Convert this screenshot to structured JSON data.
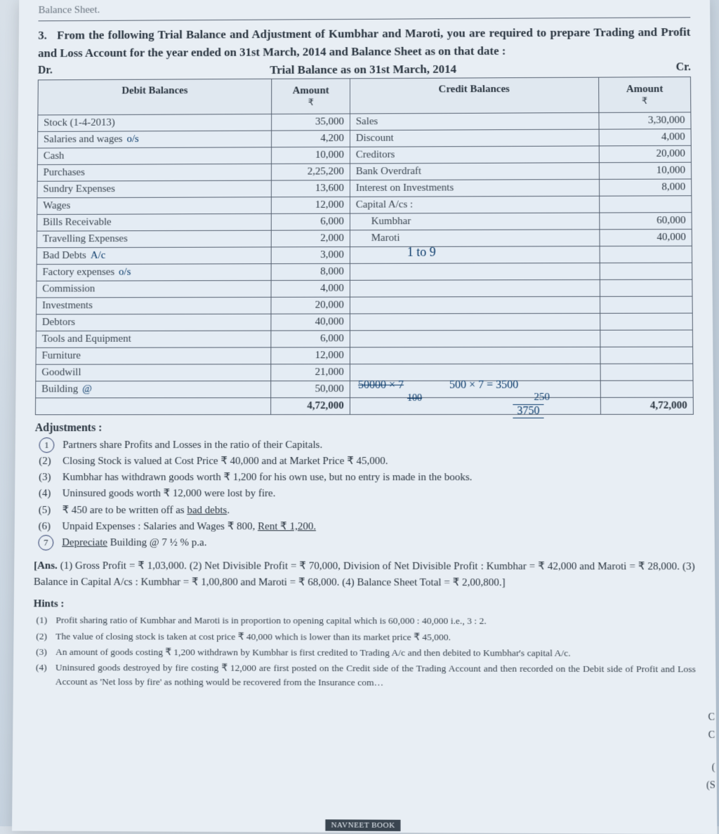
{
  "header_prev": "Balance Sheet.",
  "question_num": "3.",
  "question_text": "From the following Trial Balance and Adjustment of Kumbhar and Maroti, you are required to prepare Trading and Profit and Loss Account for the year ended on 31st March, 2014 and Balance Sheet as on that date :",
  "dr_label": "Dr.",
  "cr_label": "Cr.",
  "tb_title": "Trial Balance as on 31st March, 2014",
  "table": {
    "headers": {
      "debit": "Debit Balances",
      "damt": "Amount",
      "credit": "Credit Balances",
      "camt": "Amount",
      "rs": "₹"
    },
    "rows": [
      {
        "d": "Stock (1-4-2013)",
        "da": "35,000",
        "c": "Sales",
        "ca": "3,30,000"
      },
      {
        "d": "Salaries and wages",
        "da": "4,200",
        "c": "Discount",
        "ca": "4,000"
      },
      {
        "d": "Cash",
        "da": "10,000",
        "c": "Creditors",
        "ca": "20,000"
      },
      {
        "d": "Purchases",
        "da": "2,25,200",
        "c": "Bank Overdraft",
        "ca": "10,000"
      },
      {
        "d": "Sundry Expenses",
        "da": "13,600",
        "c": "Interest on Investments",
        "ca": "8,000"
      },
      {
        "d": "Wages",
        "da": "12,000",
        "c": "Capital A/cs :",
        "ca": ""
      },
      {
        "d": "Bills Receivable",
        "da": "6,000",
        "c": "Kumbhar",
        "ca": "60,000",
        "indent": true
      },
      {
        "d": "Travelling Expenses",
        "da": "2,000",
        "c": "Maroti",
        "ca": "40,000",
        "indent": true
      },
      {
        "d": "Bad Debts",
        "da": "3,000",
        "c": "",
        "ca": ""
      },
      {
        "d": "Factory expenses",
        "da": "8,000",
        "c": "",
        "ca": ""
      },
      {
        "d": "Commission",
        "da": "4,000",
        "c": "",
        "ca": ""
      },
      {
        "d": "Investments",
        "da": "20,000",
        "c": "",
        "ca": ""
      },
      {
        "d": "Debtors",
        "da": "40,000",
        "c": "",
        "ca": ""
      },
      {
        "d": "Tools and Equipment",
        "da": "6,000",
        "c": "",
        "ca": ""
      },
      {
        "d": "Furniture",
        "da": "12,000",
        "c": "",
        "ca": ""
      },
      {
        "d": "Goodwill",
        "da": "21,000",
        "c": "",
        "ca": ""
      },
      {
        "d": "Building",
        "da": "50,000",
        "c": "",
        "ca": ""
      }
    ],
    "total_d": "4,72,000",
    "total_c": "4,72,000"
  },
  "hand_notes": {
    "s_wages": "o/s",
    "bad_debts": "A/c",
    "factory": "o/s",
    "building": "@",
    "one_to_nine": "1 to 9",
    "calc1": "50000 × 7",
    "calc1b": "100",
    "calc2": "500 × 7 = 3500",
    "calc3": "250",
    "calc4": "3750"
  },
  "adjustments_title": "Adjustments :",
  "adjustments": [
    {
      "n": "(1)",
      "t": "Partners share Profits and Losses in the ratio of their Capitals.",
      "circ": true
    },
    {
      "n": "(2)",
      "t": "Closing Stock is valued at Cost Price ₹ 40,000 and at Market Price ₹ 45,000."
    },
    {
      "n": "(3)",
      "t": "Kumbhar has withdrawn goods worth ₹ 1,200 for his own use, but no entry is made in the books."
    },
    {
      "n": "(4)",
      "t": "Uninsured goods worth ₹ 12,000 were lost by fire."
    },
    {
      "n": "(5)",
      "t": "₹ 450 are to be written off as bad debts.",
      "u": "bad debts"
    },
    {
      "n": "(6)",
      "t": "Unpaid Expenses : Salaries and Wages ₹ 800, Rent ₹ 1,200.",
      "u": "Rent ₹ 1,200."
    },
    {
      "n": "(7)",
      "t": "Depreciate Building @ 7 ½ % p.a.",
      "circ": true,
      "u": "Depreciate"
    }
  ],
  "ans_label": "[Ans.",
  "ans_text": "(1) Gross Profit = ₹ 1,03,000. (2) Net Divisible Profit = ₹ 70,000, Division of Net Divisible Profit : Kumbhar = ₹ 42,000 and Maroti = ₹ 28,000. (3) Balance in Capital A/cs : Kumbhar = ₹ 1,00,800 and Maroti = ₹ 68,000. (4) Balance Sheet Total = ₹ 2,00,800.]",
  "hints_title": "Hints :",
  "hints": [
    {
      "n": "(1)",
      "t": "Profit sharing ratio of Kumbhar and Maroti is in proportion to opening capital which is 60,000 : 40,000 i.e., 3 : 2."
    },
    {
      "n": "(2)",
      "t": "The value of closing stock is taken at cost price ₹ 40,000 which is lower than its market price ₹ 45,000."
    },
    {
      "n": "(3)",
      "t": "An amount of goods costing ₹ 1,200 withdrawn by Kumbhar is first credited to Trading A/c and then debited to Kumbhar's capital A/c."
    },
    {
      "n": "(4)",
      "t": "Uninsured goods destroyed by fire costing ₹ 12,000 are first posted on the Credit side of the Trading Account and then recorded on the Debit side of Profit and Loss Account as 'Net loss by fire' as nothing would be recovered from the Insurance com…"
    }
  ],
  "edge_letters": [
    "C",
    "C",
    "(",
    "(S",
    "(S"
  ],
  "footer": "NAVNEET BOOK"
}
